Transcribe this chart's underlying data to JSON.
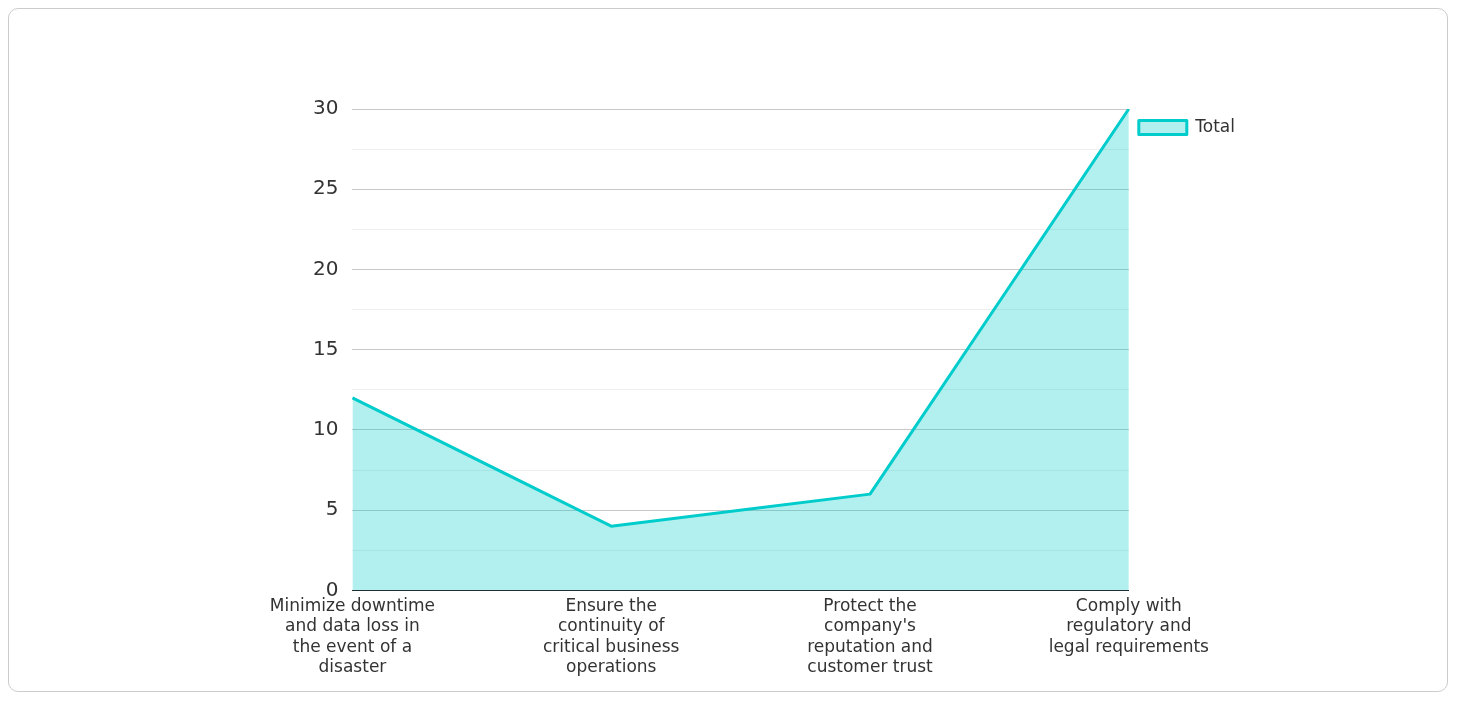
{
  "chart_data": {
    "type": "area",
    "categories": [
      "Minimize downtime and data loss in the event of a disaster",
      "Ensure the continuity of critical business operations",
      "Protect the company's reputation and customer trust",
      "Comply with regulatory and legal requirements"
    ],
    "series": [
      {
        "name": "Total",
        "color": "#00cccc",
        "values": [
          12,
          4,
          6,
          30
        ]
      }
    ],
    "ylim": [
      0,
      30
    ],
    "yticks": [
      0,
      {
        "value": 2.5,
        "label": null
      },
      5,
      {
        "value": 7.5,
        "label": null
      },
      10,
      {
        "value": 12.5,
        "label": null
      },
      15,
      {
        "value": 17.5,
        "label": null
      },
      20,
      {
        "value": 22.5,
        "label": null
      },
      25,
      {
        "value": 27.5,
        "label": null
      },
      30
    ],
    "grid": "y",
    "legend": "top right"
  }
}
